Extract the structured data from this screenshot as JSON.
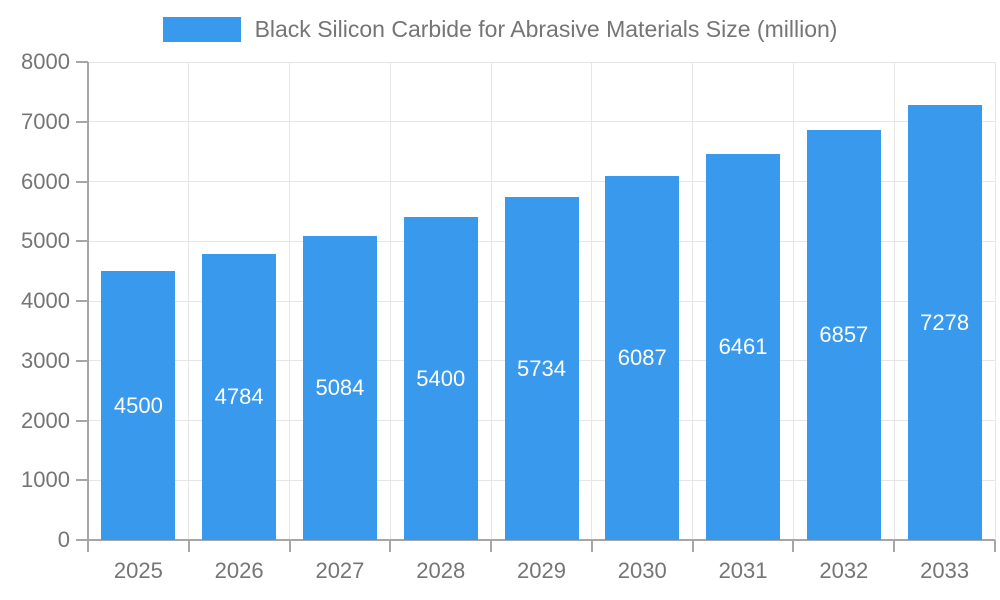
{
  "chart": {
    "colors": {
      "bar": "#3999EC",
      "text": "#757575",
      "axis": "#a6a6a6",
      "grid": "#e6e6e6",
      "value_label": "#ffffff",
      "background": "#ffffff"
    }
  },
  "chart_data": {
    "type": "bar",
    "title": "Black Silicon Carbide for Abrasive Materials Size (million)",
    "series_name": "Black Silicon Carbide for Abrasive Materials Size (million)",
    "categories": [
      "2025",
      "2026",
      "2027",
      "2028",
      "2029",
      "2030",
      "2031",
      "2032",
      "2033"
    ],
    "values": [
      4500,
      4784,
      5084,
      5400,
      5734,
      6087,
      6461,
      6857,
      7278
    ],
    "xlabel": "",
    "ylabel": "",
    "ylim": [
      0,
      8000
    ],
    "yticks": [
      0,
      1000,
      2000,
      3000,
      4000,
      5000,
      6000,
      7000,
      8000
    ],
    "grid": true,
    "legend_position": "top",
    "value_labels": "inside-center"
  }
}
